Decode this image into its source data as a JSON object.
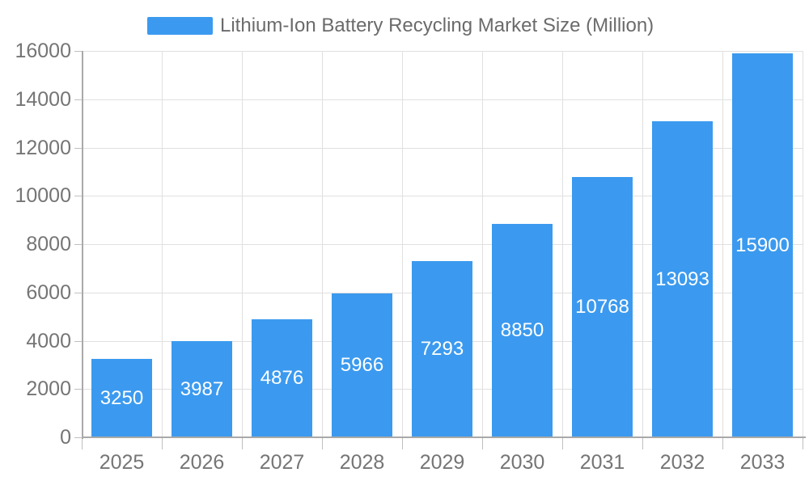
{
  "legend": {
    "label": "Lithium-Ion Battery Recycling Market Size (Million)"
  },
  "chart_data": {
    "type": "bar",
    "title": "Lithium-Ion Battery Recycling Market Size (Million)",
    "categories": [
      "2025",
      "2026",
      "2027",
      "2028",
      "2029",
      "2030",
      "2031",
      "2032",
      "2033"
    ],
    "values": [
      3250,
      3987,
      4876,
      5966,
      7293,
      8850,
      10768,
      13093,
      15900
    ],
    "series_name": "Lithium-Ion Battery Recycling Market Size (Million)",
    "xlabel": "",
    "ylabel": "",
    "ylim": [
      0,
      16000
    ],
    "y_ticks": [
      0,
      2000,
      4000,
      6000,
      8000,
      10000,
      12000,
      14000,
      16000
    ],
    "grid": true,
    "legend_position": "top-center",
    "colors": {
      "bar": "#3b9aef",
      "value_label": "#ffffff",
      "axis_label": "#757575",
      "legend_text": "#6b6b6b",
      "gridline": "#e0e0e0",
      "axis_line": "#a9a9a9",
      "tick": "#bfbfbf",
      "background": "#ffffff"
    }
  }
}
